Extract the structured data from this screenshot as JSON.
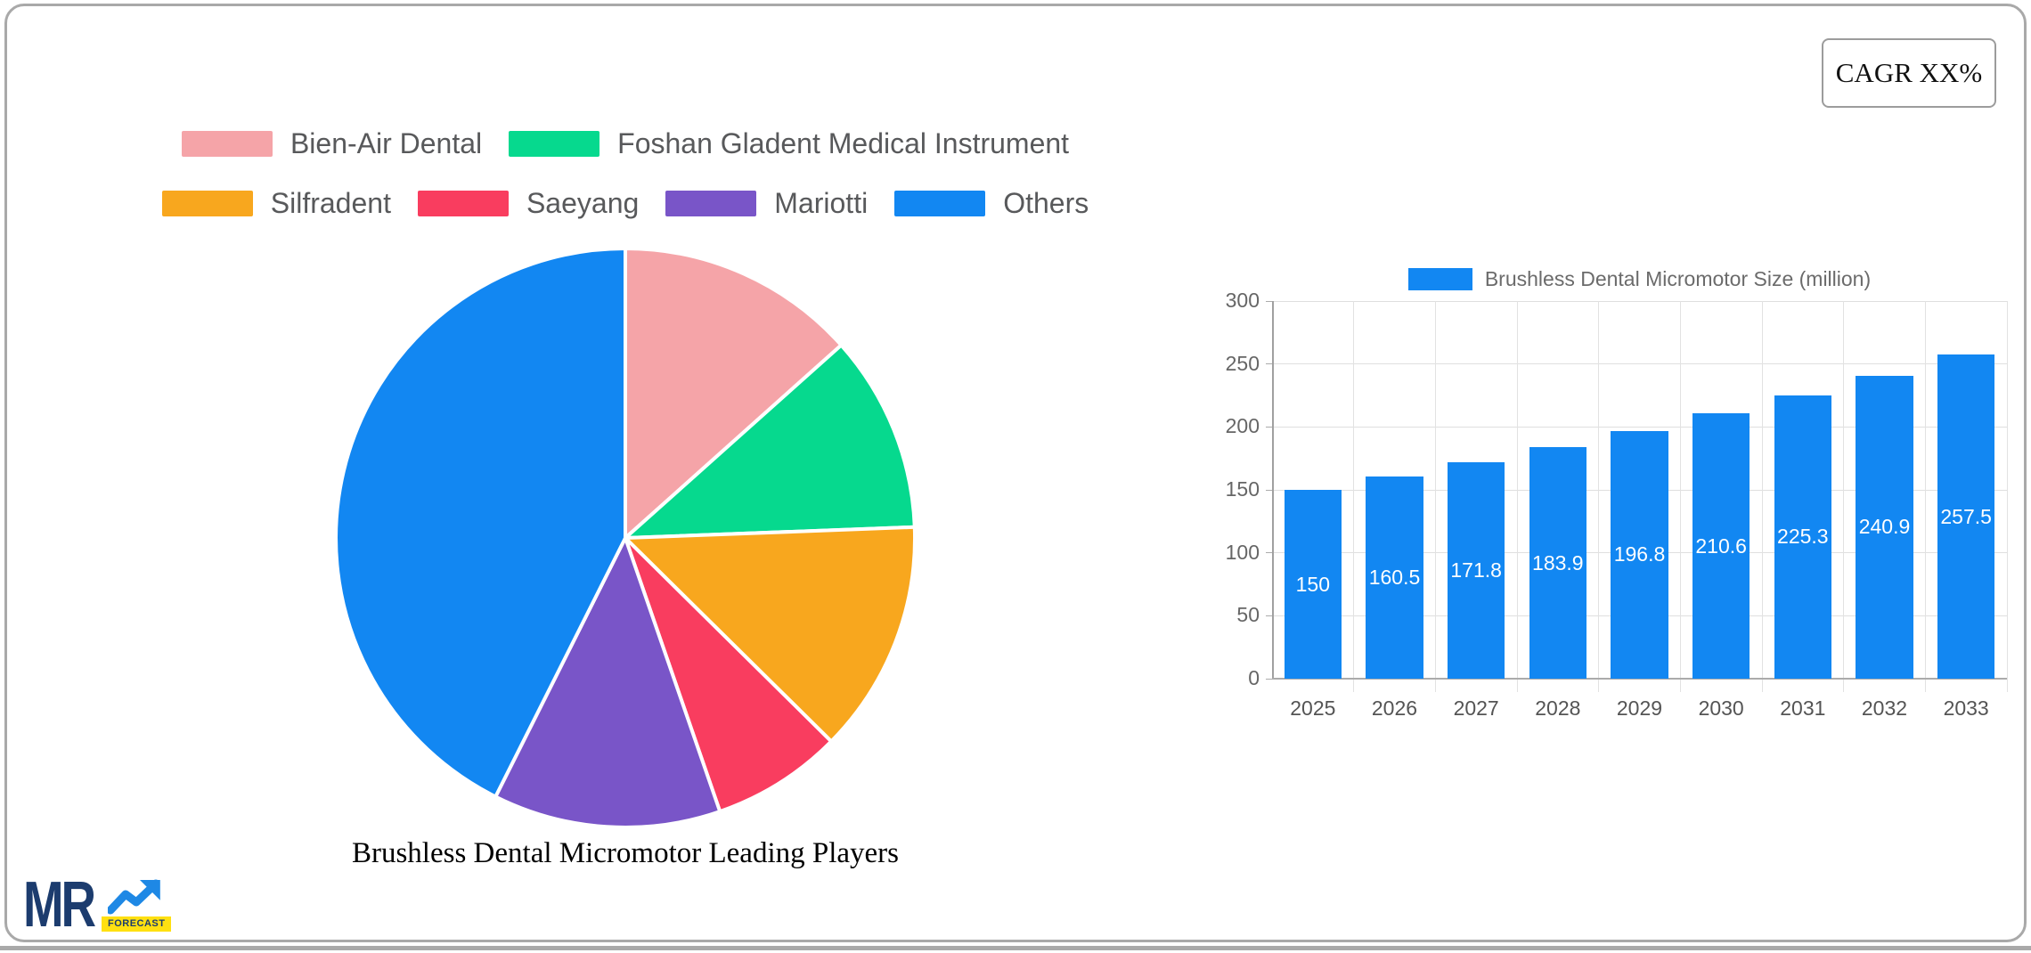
{
  "header": {
    "cagr_label": "CAGR XX%"
  },
  "logo": {
    "mr": "MR",
    "forecast": "FORECAST",
    "navy": "#1c3c6e",
    "arrow_blue": "#1e88e5",
    "yellow": "#ffe011"
  },
  "chart_data": [
    {
      "type": "pie",
      "title": "Brushless Dental Micromotor Leading Players",
      "labels": [
        "Bien-Air Dental",
        "Foshan Gladent Medical Instrument",
        "Silfradent",
        "Saeyang",
        "Mariotti",
        "Others"
      ],
      "values": [
        13.4,
        11.0,
        13.0,
        7.3,
        12.7,
        42.6
      ],
      "colors": [
        "#f5a4a8",
        "#06d98e",
        "#f8a71e",
        "#f93d5f",
        "#7955c8",
        "#1287f2"
      ],
      "start_angle": "12-oclock",
      "direction": "clockwise",
      "separator_color": "#ffffff",
      "legend_rows": [
        [
          0,
          1
        ],
        [
          2,
          3,
          4,
          5
        ]
      ],
      "legend_position": "top"
    },
    {
      "type": "bar",
      "legend_label": "Brushless Dental Micromotor Size (million)",
      "categories": [
        "2025",
        "2026",
        "2027",
        "2028",
        "2029",
        "2030",
        "2031",
        "2032",
        "2033"
      ],
      "values": [
        150,
        160.5,
        171.8,
        183.9,
        196.8,
        210.6,
        225.3,
        240.9,
        257.5
      ],
      "bar_color": "#1287f2",
      "ylim": [
        0,
        300
      ],
      "ytick_step": 50,
      "grid": true,
      "legend_position": "top",
      "value_label_style": "inside-center-white"
    }
  ]
}
